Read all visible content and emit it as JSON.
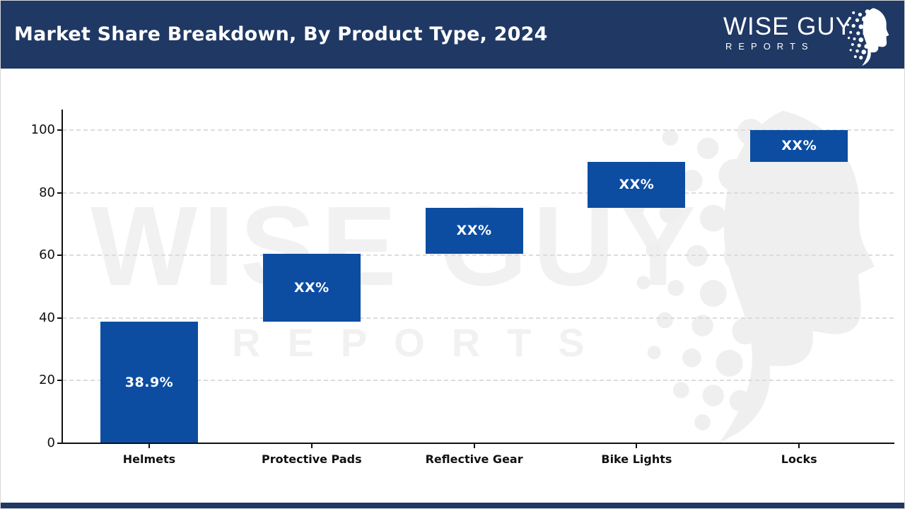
{
  "header": {
    "title": "Market Share Breakdown, By Product Type, 2024",
    "logo": {
      "line1": "WISE GUY",
      "line2": "REPORTS"
    },
    "bg_color": "#1F3864"
  },
  "watermark": {
    "line1": "WISE GUY",
    "line2": "REPORTS"
  },
  "chart_data": {
    "type": "bar",
    "subtype": "waterfall",
    "title": "Market Share Breakdown, By Product Type, 2024",
    "xlabel": "",
    "ylabel": "",
    "categories": [
      "Helmets",
      "Protective Pads",
      "Reflective Gear",
      "Bike Lights",
      "Locks"
    ],
    "segments": [
      {
        "category": "Helmets",
        "start": 0,
        "end": 38.9,
        "label": "38.9%"
      },
      {
        "category": "Protective Pads",
        "start": 38.9,
        "end": 60.6,
        "label": "XX%"
      },
      {
        "category": "Reflective Gear",
        "start": 60.6,
        "end": 75.2,
        "label": "XX%"
      },
      {
        "category": "Bike Lights",
        "start": 75.2,
        "end": 89.9,
        "label": "XX%"
      },
      {
        "category": "Locks",
        "start": 89.9,
        "end": 100,
        "label": "XX%"
      }
    ],
    "yticks": [
      0,
      20,
      40,
      60,
      80,
      100
    ],
    "ylim": [
      0,
      106.5
    ],
    "grid": "horizontal dashed",
    "legend": "none",
    "bar_color": "#0C4DA2",
    "bar_label_color": "#FFFFFF",
    "axis_color": "#111111",
    "gridline_color": "#DCDCDC"
  }
}
